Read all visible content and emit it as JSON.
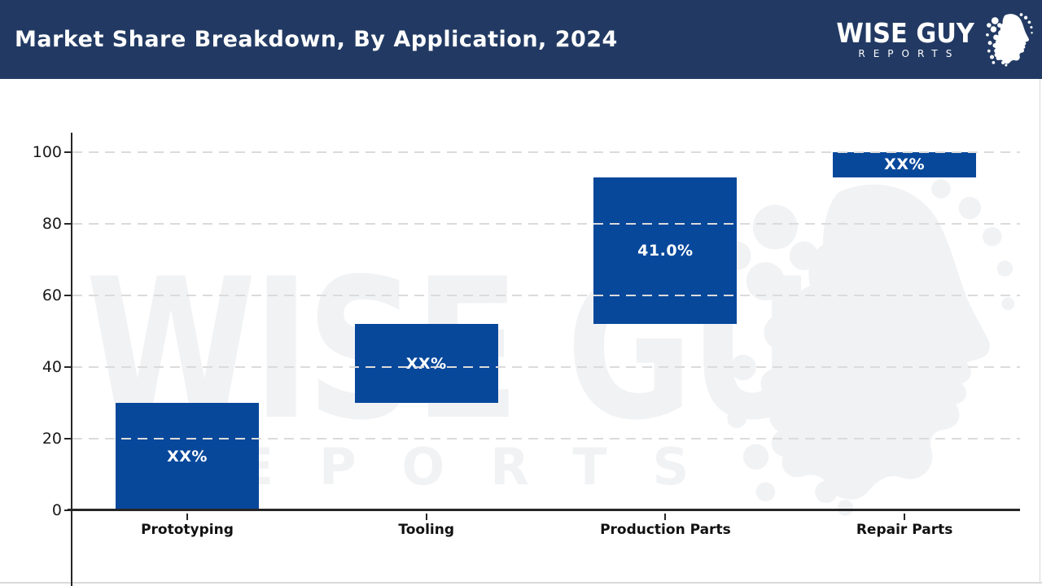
{
  "header": {
    "title": "Market Share Breakdown, By Application, 2024",
    "logo": {
      "line1": "WISE GUY",
      "line2": "REPORTS"
    }
  },
  "watermark": {
    "line1": "WISE GUY",
    "line2": "REPORTS"
  },
  "colors": {
    "header_bg": "#223A63",
    "bar": "#08489B",
    "bar_label": "#ffffff",
    "gridline": "#dbdbdb",
    "axis": "#262626",
    "watermark": "#f1f2f4"
  },
  "chart_data": {
    "type": "bar",
    "subtype": "waterfall",
    "title": "Market Share Breakdown, By Application, 2024",
    "categories": [
      "Prototyping",
      "Tooling",
      "Production Parts",
      "Repair Parts"
    ],
    "segments": [
      {
        "category": "Prototyping",
        "start": 0,
        "end": 30,
        "label": "XX%"
      },
      {
        "category": "Tooling",
        "start": 30,
        "end": 52,
        "label": "XX%"
      },
      {
        "category": "Production Parts",
        "start": 52,
        "end": 93,
        "label": "41.0%"
      },
      {
        "category": "Repair Parts",
        "start": 93,
        "end": 100,
        "label": "XX%"
      }
    ],
    "yticks": [
      0,
      20,
      40,
      60,
      80,
      100
    ],
    "ylim": [
      0,
      104
    ],
    "xlabel": "",
    "ylabel": "",
    "grid": "dashed-horizontal",
    "legend": "none"
  }
}
